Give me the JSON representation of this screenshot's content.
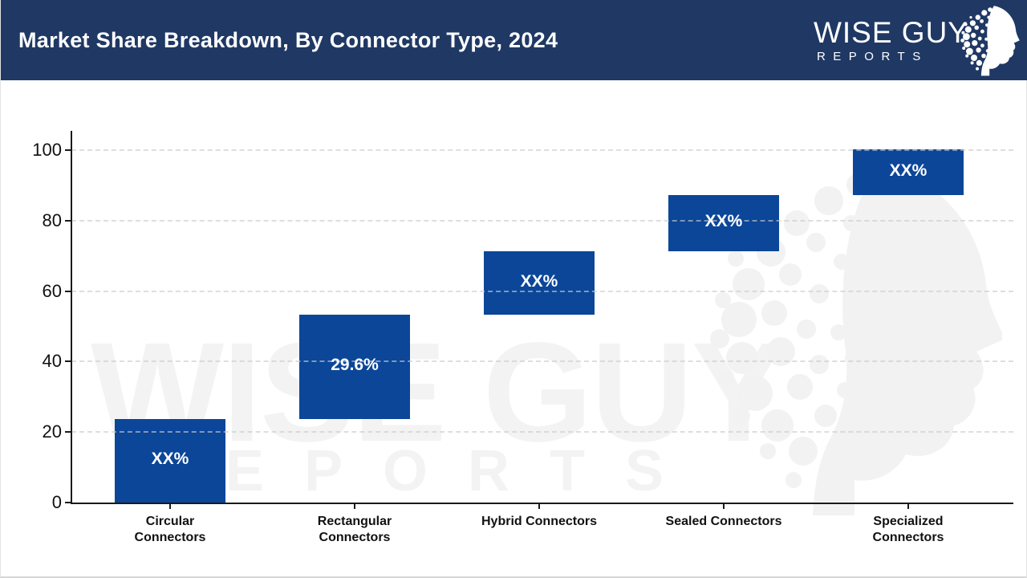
{
  "header": {
    "title": "Market Share Breakdown, By Connector Type, 2024",
    "logo": {
      "line1": "WISE GUY",
      "line2": "REPORTS"
    }
  },
  "watermark": {
    "line1": "WISE GUY",
    "line2": "REPORTS"
  },
  "chart_data": {
    "type": "bar",
    "subtype": "waterfall",
    "title": "Market Share Breakdown, By Connector Type, 2024",
    "categories": [
      "Circular Connectors",
      "Rectangular Connectors",
      "Hybrid Connectors",
      "Sealed Connectors",
      "Specialized Connectors"
    ],
    "category_display": [
      "Circular\nConnectors",
      "Rectangular\nConnectors",
      "Hybrid Connectors",
      "Sealed Connectors",
      "Specialized\nConnectors"
    ],
    "segments": [
      {
        "category": "Circular Connectors",
        "start": 0,
        "end": 23.7,
        "label": "XX%"
      },
      {
        "category": "Rectangular Connectors",
        "start": 23.7,
        "end": 53.3,
        "label": "29.6%"
      },
      {
        "category": "Hybrid Connectors",
        "start": 53.3,
        "end": 71.3,
        "label": "XX%"
      },
      {
        "category": "Sealed Connectors",
        "start": 71.3,
        "end": 87.2,
        "label": "XX%"
      },
      {
        "category": "Specialized Connectors",
        "start": 87.2,
        "end": 100.2,
        "label": "XX%"
      }
    ],
    "y_ticks": [
      0,
      20,
      40,
      60,
      80,
      100
    ],
    "ylim": [
      0,
      105
    ],
    "xlabel": "",
    "ylabel": "",
    "grid": "horizontal-dashed",
    "legend": "none",
    "bar_color": "#0b4699",
    "bar_label_color": "#ffffff"
  },
  "colors": {
    "header_bg": "#1f3864",
    "bar": "#0b4699",
    "axis": "#1a1a1a",
    "grid": "#cfcfcf",
    "watermark": "#f3f3f3",
    "background": "#ffffff"
  }
}
